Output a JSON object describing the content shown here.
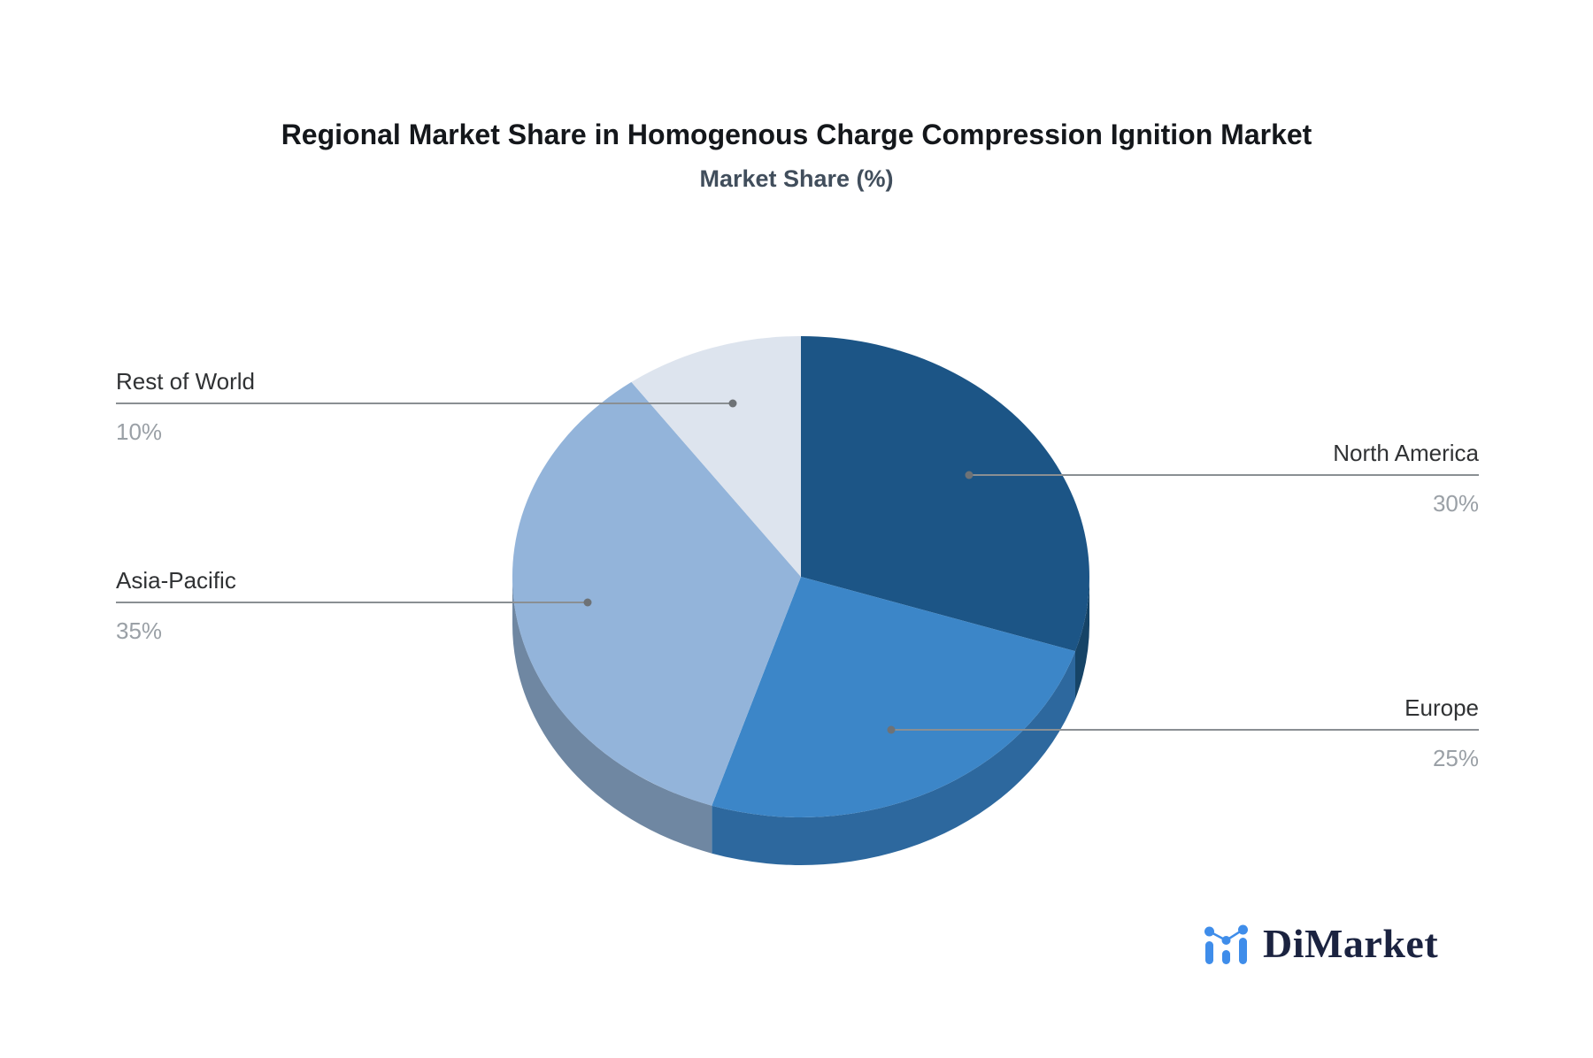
{
  "header": {
    "title": "Regional Market Share in Homogenous Charge Compression Ignition Market",
    "subtitle": "Market Share (%)"
  },
  "chart_data": {
    "type": "pie",
    "title": "Regional Market Share in Homogenous Charge Compression Ignition Market",
    "subtitle": "Market Share (%)",
    "unit": "%",
    "style": "3d-pie",
    "start_angle_deg": 0,
    "direction": "clockwise",
    "slices": [
      {
        "label": "North America",
        "value": 30,
        "display": "30%",
        "color": "#1c5586",
        "side_color": "#164467",
        "label_side": "right"
      },
      {
        "label": "Europe",
        "value": 25,
        "display": "25%",
        "color": "#3c86c8",
        "side_color": "#2d689e",
        "label_side": "right"
      },
      {
        "label": "Asia-Pacific",
        "value": 35,
        "display": "35%",
        "color": "#93b4da",
        "side_color": "#6f87a2",
        "label_side": "left"
      },
      {
        "label": "Rest of World",
        "value": 10,
        "display": "10%",
        "color": "#dde4ee",
        "side_color": "#c2cfe0",
        "label_side": "left"
      }
    ],
    "leader_line_color": "#8a8f93",
    "leader_dot_color": "#6e7276",
    "label_color": "#303234",
    "value_color": "#9aa0a6",
    "background": "#ffffff"
  },
  "branding": {
    "logo_text": "DiMarket",
    "logo_text_color": "#1b2340",
    "logo_mark_color": "#3f8dea"
  }
}
